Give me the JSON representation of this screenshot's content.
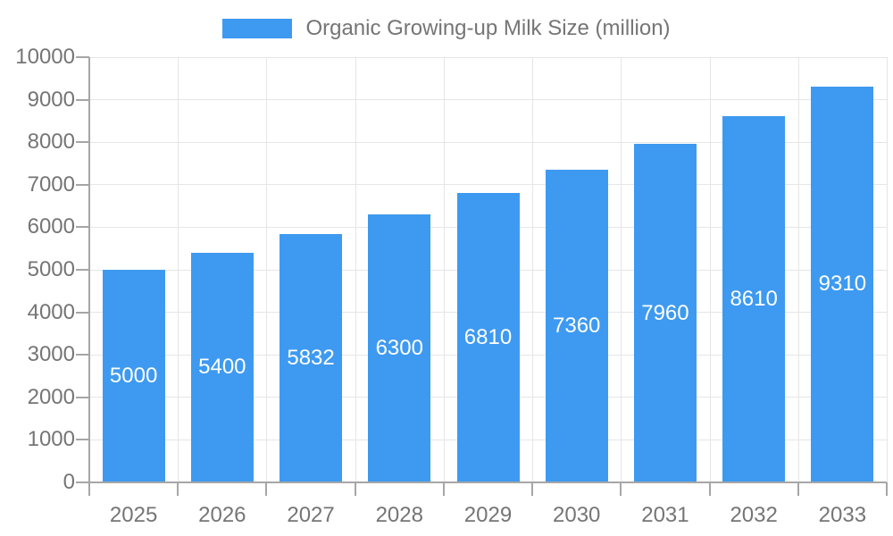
{
  "chart_data": {
    "type": "bar",
    "title": "Organic Growing-up Milk Size (million)",
    "legend": {
      "label": "Organic Growing-up Milk Size (million)",
      "position": "top-center"
    },
    "categories": [
      "2025",
      "2026",
      "2027",
      "2028",
      "2029",
      "2030",
      "2031",
      "2032",
      "2033"
    ],
    "series": [
      {
        "name": "Organic Growing-up Milk Size (million)",
        "values": [
          5000,
          5400,
          5832,
          6300,
          6810,
          7360,
          7960,
          8610,
          9310
        ]
      }
    ],
    "xlabel": "",
    "ylabel": "",
    "ylim": [
      0,
      10000
    ],
    "y_tick_interval": 1000,
    "y_tick_labels": [
      "0",
      "1000",
      "2000",
      "3000",
      "4000",
      "5000",
      "6000",
      "7000",
      "8000",
      "9000",
      "10000"
    ],
    "grid": true,
    "value_labels_inside_bars": true,
    "colors": {
      "bar": "#3E9AF0",
      "axis_text": "#757575",
      "value_label_text": "#FFFFFF",
      "gridline": "#E6E6E6",
      "axis_line": "#A6A6A6",
      "background": "#FFFFFF"
    }
  }
}
